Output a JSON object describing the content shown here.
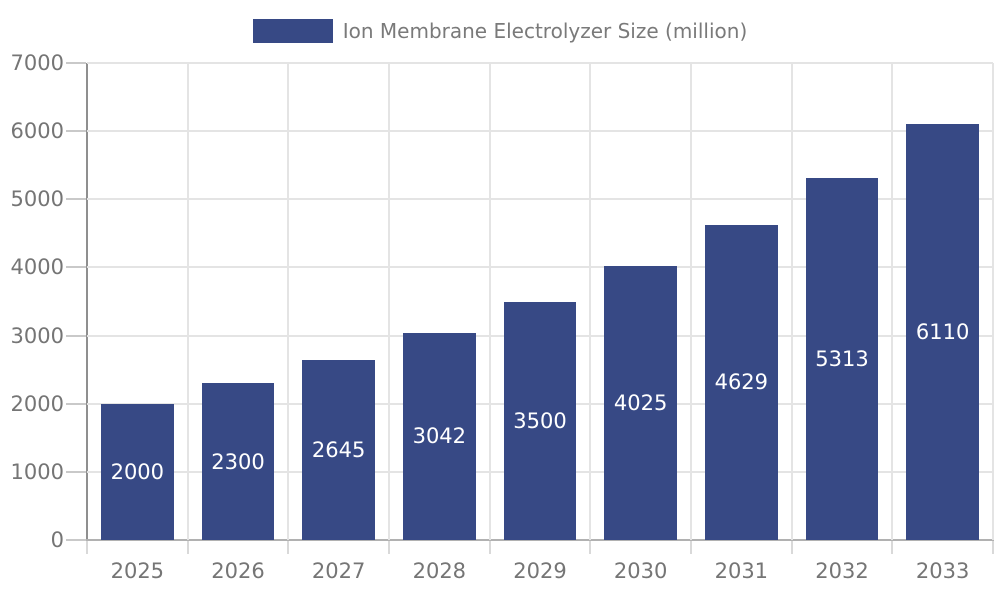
{
  "legend": {
    "label": "Ion Membrane Electrolyzer Size (million)"
  },
  "chart_data": {
    "type": "bar",
    "title": "Ion Membrane Electrolyzer Size (million)",
    "series_name": "Ion Membrane Electrolyzer Size (million)",
    "categories": [
      "2025",
      "2026",
      "2027",
      "2028",
      "2029",
      "2030",
      "2031",
      "2032",
      "2033"
    ],
    "values": [
      2000,
      2300,
      2645,
      3042,
      3500,
      4025,
      4629,
      5313,
      6110
    ],
    "bar_value_labels": [
      "2000",
      "2300",
      "2645",
      "3042",
      "3500",
      "4025",
      "4629",
      "5313",
      "6110"
    ],
    "xlabel": "",
    "ylabel": "",
    "ylim": [
      0,
      7000
    ],
    "ytick_step": 1000,
    "ytick_labels": [
      "0",
      "1000",
      "2000",
      "3000",
      "4000",
      "5000",
      "6000",
      "7000"
    ],
    "grid": true,
    "legend_position": "top-center",
    "colors": {
      "bar": "#374985",
      "bar_label_text": "#ffffff",
      "axis_label_text": "#757575",
      "legend_text": "#7a7a7a",
      "gridline": "#e4e4e4",
      "y_axis_line": "#8f8f8f",
      "x_axis_line": "#b1b1b1"
    }
  }
}
